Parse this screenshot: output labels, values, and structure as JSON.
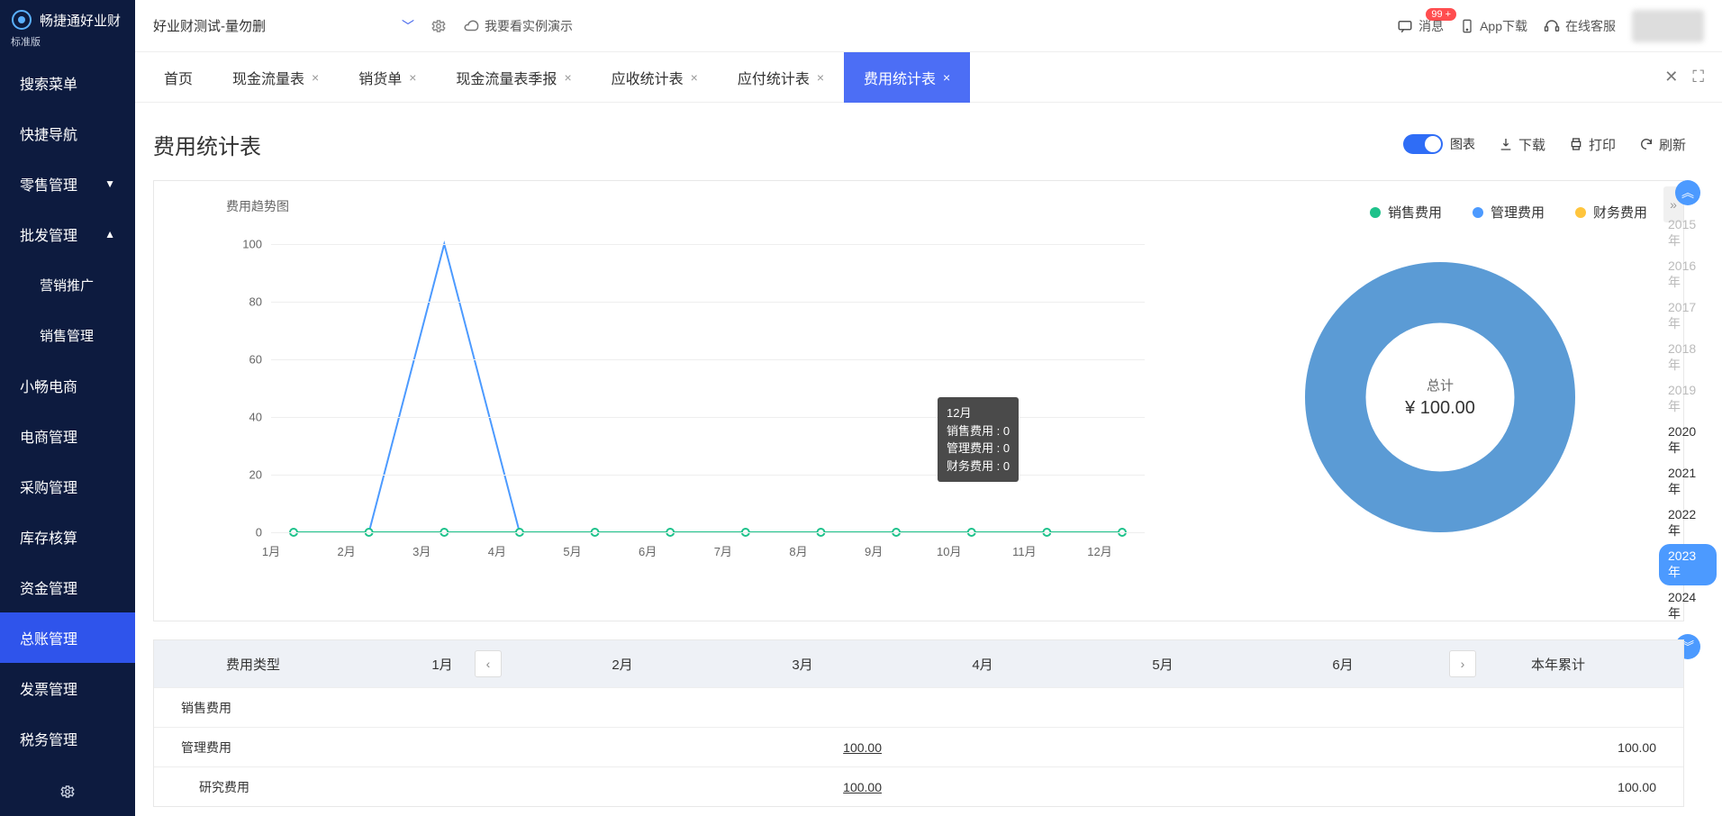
{
  "brand": {
    "name": "畅捷通好业财",
    "edition": "标准版"
  },
  "sidebar": {
    "items": [
      {
        "label": "搜索菜单"
      },
      {
        "label": "快捷导航"
      },
      {
        "label": "零售管理",
        "caret": "▼"
      },
      {
        "label": "批发管理",
        "caret": "▲"
      },
      {
        "label": "营销推广",
        "sub": true
      },
      {
        "label": "销售管理",
        "sub": true
      },
      {
        "label": "小畅电商"
      },
      {
        "label": "电商管理"
      },
      {
        "label": "采购管理"
      },
      {
        "label": "库存核算"
      },
      {
        "label": "资金管理"
      },
      {
        "label": "总账管理",
        "active": true
      },
      {
        "label": "发票管理"
      },
      {
        "label": "税务管理"
      }
    ]
  },
  "topbar": {
    "org": "好业财测试-量勿删",
    "demo": "我要看实例演示",
    "msg": "消息",
    "msg_badge": "99 +",
    "app": "App下载",
    "service": "在线客服"
  },
  "tabs": [
    {
      "label": "首页",
      "closable": false
    },
    {
      "label": "现金流量表",
      "closable": true
    },
    {
      "label": "销货单",
      "closable": true
    },
    {
      "label": "现金流量表季报",
      "closable": true
    },
    {
      "label": "应收统计表",
      "closable": true
    },
    {
      "label": "应付统计表",
      "closable": true
    },
    {
      "label": "费用统计表",
      "closable": true,
      "active": true
    }
  ],
  "page": {
    "title": "费用统计表",
    "chart_toggle": "图表",
    "download": "下载",
    "print": "打印",
    "refresh": "刷新"
  },
  "chart": {
    "title": "费用趋势图",
    "type": "line",
    "legend": [
      {
        "label": "销售费用",
        "color": "#1ec28b"
      },
      {
        "label": "管理费用",
        "color": "#4c9aff"
      },
      {
        "label": "财务费用",
        "color": "#ffc53d"
      }
    ],
    "x_labels": [
      "1月",
      "2月",
      "3月",
      "4月",
      "5月",
      "6月",
      "7月",
      "8月",
      "9月",
      "10月",
      "11月",
      "12月"
    ],
    "ylim": [
      0,
      100
    ],
    "ytick_step": 20,
    "series": {
      "sales": [
        0,
        0,
        0,
        0,
        0,
        0,
        0,
        0,
        0,
        0,
        0,
        0
      ],
      "admin": [
        0,
        0,
        100,
        0,
        0,
        0,
        0,
        0,
        0,
        0,
        0,
        0
      ],
      "finance": [
        0,
        0,
        0,
        0,
        0,
        0,
        0,
        0,
        0,
        0,
        0,
        0
      ]
    },
    "tooltip": {
      "month": "12月",
      "l1": "销售费用 : 0",
      "l2": "管理费用 : 0",
      "l3": "财务费用 : 0"
    },
    "grid_color": "#eeeeee",
    "line_colors": {
      "sales": "#1ec28b",
      "admin": "#4c9aff",
      "finance": "#ffc53d"
    }
  },
  "donut": {
    "type": "donut",
    "center_label": "总计",
    "center_value": "¥ 100.00",
    "color": "#5b9bd5",
    "inner_ratio": 0.55
  },
  "years": {
    "list": [
      "2015年",
      "2016年",
      "2017年",
      "2018年",
      "2019年",
      "2020年",
      "2021年",
      "2022年",
      "2023年",
      "2024年"
    ],
    "active": "2023年",
    "near": [
      "2020年",
      "2021年",
      "2022年",
      "2024年"
    ]
  },
  "table": {
    "type_header": "费用类型",
    "months": [
      "1月",
      "2月",
      "3月",
      "4月",
      "5月",
      "6月"
    ],
    "total_header": "本年累计",
    "rows": [
      {
        "type": "销售费用",
        "indent": false,
        "m": [
          "",
          "",
          "",
          "",
          "",
          ""
        ],
        "total": ""
      },
      {
        "type": "管理费用",
        "indent": false,
        "m": [
          "",
          "",
          "100.00",
          "",
          "",
          ""
        ],
        "total": "100.00",
        "underline": true
      },
      {
        "type": "研究费用",
        "indent": true,
        "m": [
          "",
          "",
          "100.00",
          "",
          "",
          ""
        ],
        "total": "100.00",
        "underline": true
      }
    ]
  }
}
